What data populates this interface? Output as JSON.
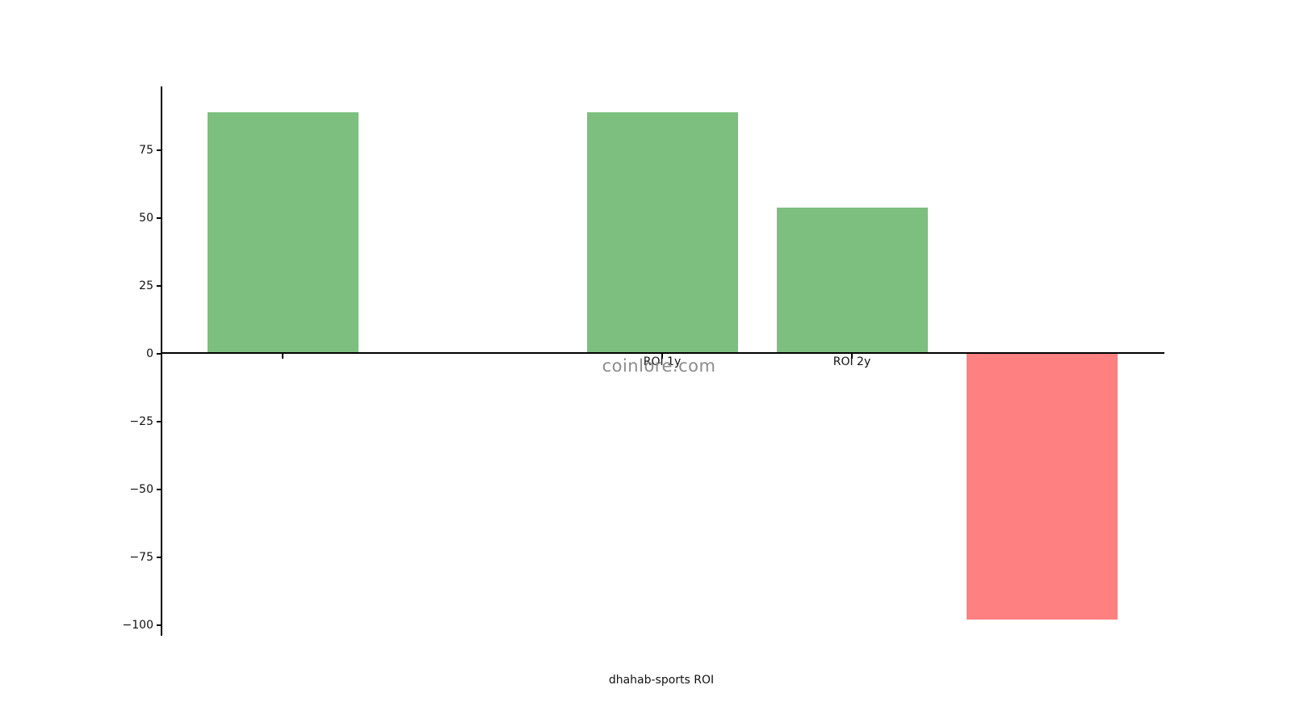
{
  "chart_data": {
    "type": "bar",
    "title": "dhahab-sports ROI",
    "watermark": "coinlore.com",
    "categories": [
      "",
      "",
      "ROI 1y",
      "ROI 2y",
      ""
    ],
    "values": [
      89,
      null,
      89,
      54,
      -98
    ],
    "y_ticks": [
      75,
      50,
      25,
      0,
      -25,
      -50,
      -75,
      -100
    ],
    "ylim": [
      -104,
      99
    ],
    "grid": false,
    "legend": "none",
    "colors": {
      "positive_bar": "#7dbf7f",
      "negative_bar": "#ff8080",
      "axis": "#000000",
      "text": "#111111",
      "watermark": "#8c8c8c"
    }
  }
}
